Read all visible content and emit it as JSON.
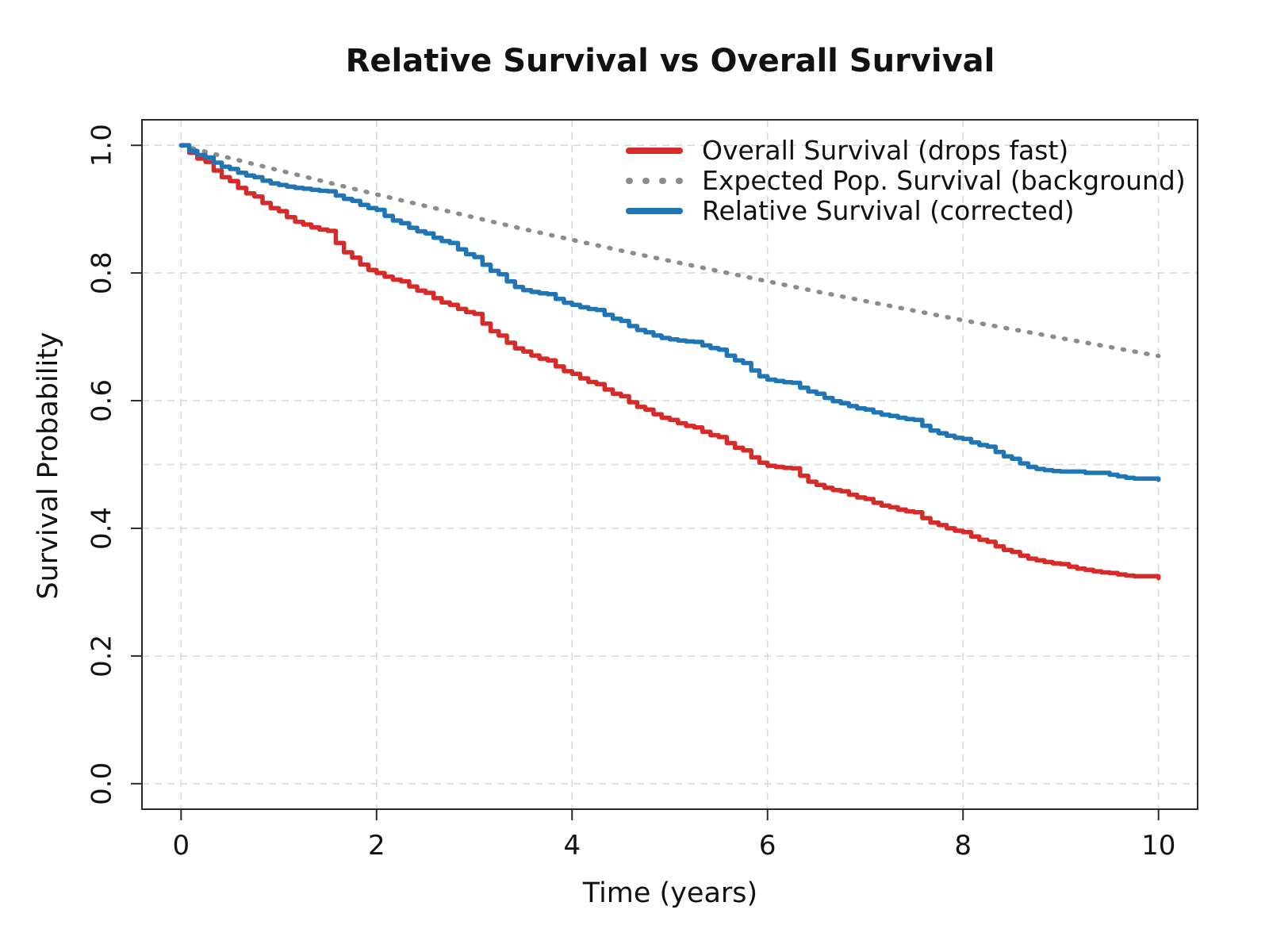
{
  "chart_data": {
    "type": "line",
    "title": "Relative Survival vs Overall Survival",
    "xlabel": "Time (years)",
    "ylabel": "Survival Probability",
    "xlim": [
      0,
      10
    ],
    "ylim": [
      0.0,
      1.0
    ],
    "x_ticks": [
      0,
      2,
      4,
      6,
      8,
      10
    ],
    "x_tick_labels": [
      "0",
      "2",
      "4",
      "6",
      "8",
      "10"
    ],
    "y_ticks": [
      0.0,
      0.2,
      0.4,
      0.6,
      0.8,
      1.0
    ],
    "y_tick_labels": [
      "0.0",
      "0.2",
      "0.4",
      "0.6",
      "0.8",
      "1.0"
    ],
    "grid": true,
    "grid_extra_y": [
      0.5
    ],
    "legend_position": "top-right",
    "colors": {
      "overall": "#d62b28",
      "expected": "#8c8c8c",
      "relative": "#2076b4",
      "gridline": "#d9d9d9",
      "axis": "#2b2b2b",
      "text": "#111111",
      "background": "#ffffff"
    },
    "series": [
      {
        "name": "Overall Survival (drops fast)",
        "color_key": "overall",
        "line": "solid",
        "step": true,
        "x_start": 0,
        "x_step": 0.25,
        "values": [
          1.0,
          0.974,
          0.944,
          0.92,
          0.897,
          0.876,
          0.866,
          0.824,
          0.8,
          0.787,
          0.769,
          0.75,
          0.736,
          0.702,
          0.677,
          0.663,
          0.642,
          0.626,
          0.607,
          0.586,
          0.57,
          0.558,
          0.543,
          0.522,
          0.498,
          0.494,
          0.468,
          0.458,
          0.446,
          0.433,
          0.425,
          0.405,
          0.394,
          0.379,
          0.363,
          0.35,
          0.344,
          0.335,
          0.33,
          0.325,
          0.322
        ]
      },
      {
        "name": "Expected Pop. Survival (background)",
        "color_key": "expected",
        "line": "dotted",
        "step": false,
        "x_start": 0,
        "x_step": 0.5,
        "values": [
          1.0,
          0.98,
          0.961,
          0.942,
          0.923,
          0.905,
          0.887,
          0.869,
          0.852,
          0.835,
          0.819,
          0.803,
          0.787,
          0.771,
          0.756,
          0.741,
          0.726,
          0.712,
          0.698,
          0.684,
          0.67
        ]
      },
      {
        "name": "Relative Survival (corrected)",
        "color_key": "relative",
        "line": "solid",
        "step": true,
        "x_start": 0,
        "x_step": 0.25,
        "values": [
          1.0,
          0.981,
          0.963,
          0.95,
          0.938,
          0.932,
          0.928,
          0.913,
          0.899,
          0.878,
          0.862,
          0.847,
          0.825,
          0.798,
          0.773,
          0.767,
          0.75,
          0.742,
          0.725,
          0.707,
          0.696,
          0.692,
          0.68,
          0.659,
          0.633,
          0.628,
          0.611,
          0.596,
          0.586,
          0.576,
          0.57,
          0.549,
          0.54,
          0.528,
          0.509,
          0.493,
          0.489,
          0.487,
          0.484,
          0.478,
          0.476
        ]
      }
    ]
  }
}
